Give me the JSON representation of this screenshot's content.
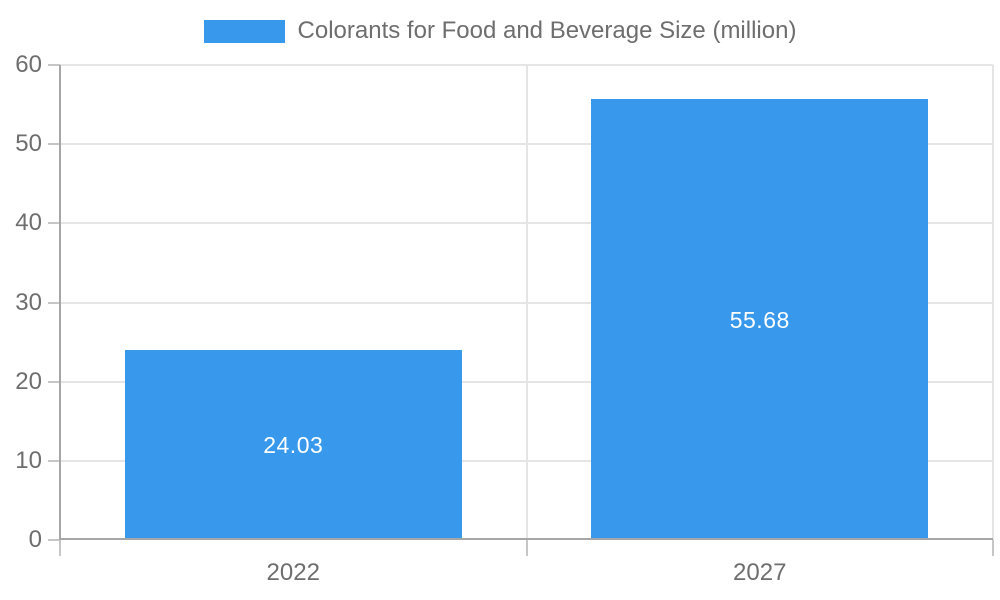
{
  "legend": {
    "label": "Colorants for Food and Beverage Size (million)"
  },
  "chart_data": {
    "type": "bar",
    "title": "Colorants for Food and Beverage Size (million)",
    "categories": [
      "2022",
      "2027"
    ],
    "values": [
      24.03,
      55.68
    ],
    "value_labels": [
      "24.03",
      "55.68"
    ],
    "xlabel": "",
    "ylabel": "",
    "ylim": [
      0,
      60
    ],
    "yticks": [
      0,
      10,
      20,
      30,
      40,
      50,
      60
    ],
    "grid": true,
    "legend_position": "top"
  },
  "colors": {
    "bar": "#3899ec",
    "grid": "#e5e5e5",
    "axis": "#a6a6a6",
    "tick": "#c6c6c6",
    "label": "#6e6e6e",
    "value_label": "#ffffff",
    "background": "#ffffff"
  }
}
